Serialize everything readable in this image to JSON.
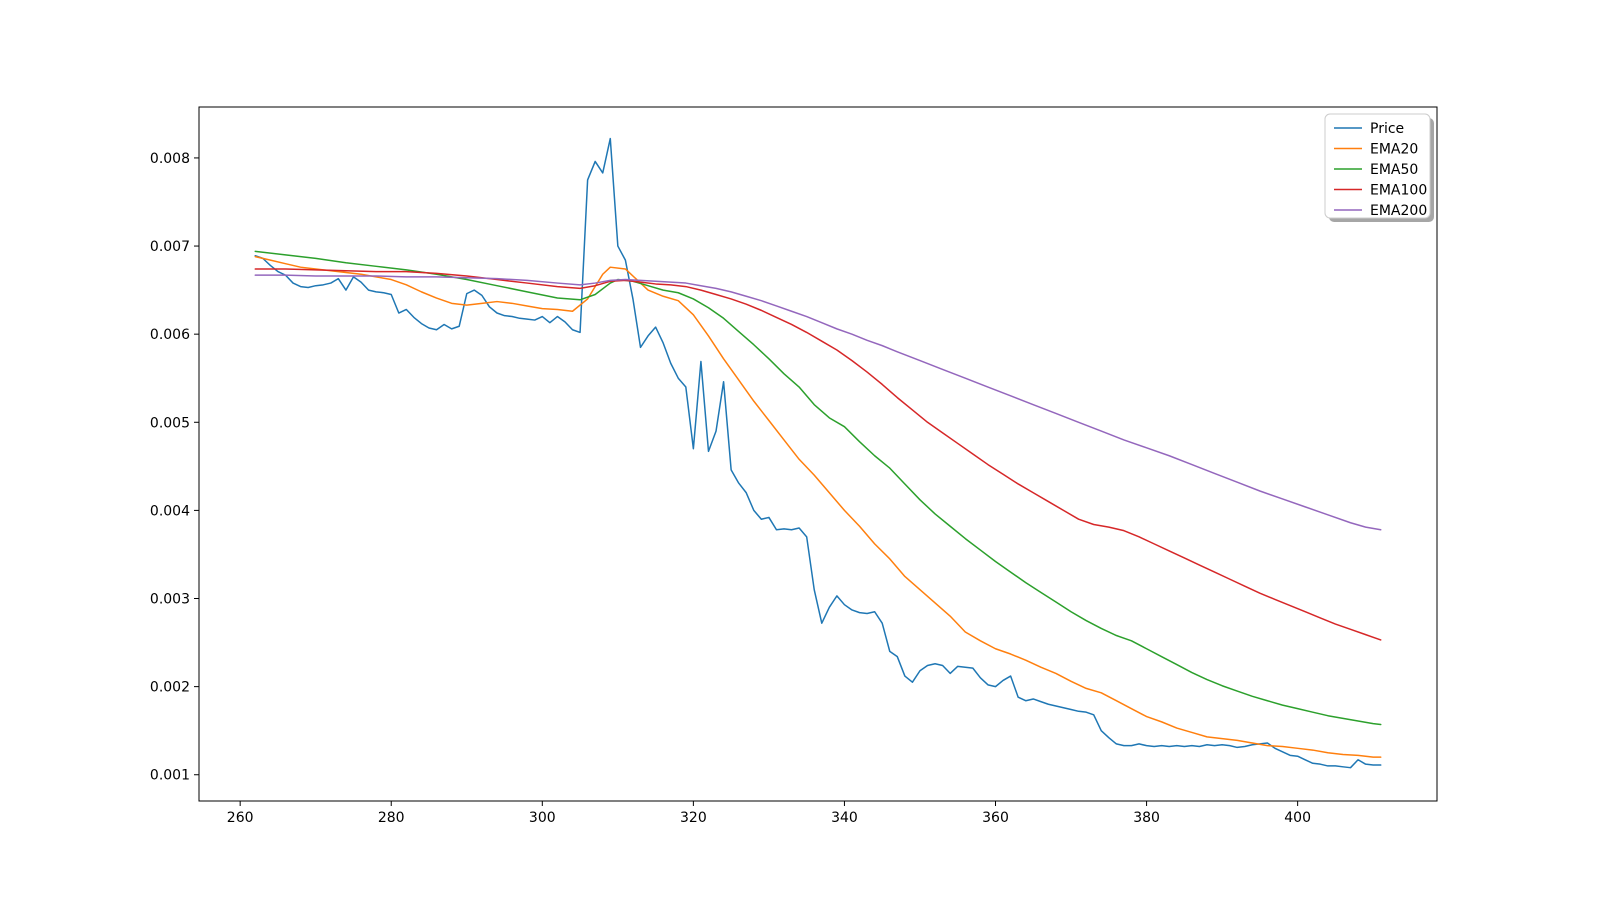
{
  "chart_data": {
    "type": "line",
    "title": "",
    "xlabel": "",
    "ylabel": "",
    "grid": false,
    "background": "#ffffff",
    "axis_color": "#000000",
    "xlim": [
      254.55,
      418.45
    ],
    "ylim": [
      0.000702,
      0.008578
    ],
    "xticks": [
      260,
      280,
      300,
      320,
      340,
      360,
      380,
      400
    ],
    "xtick_labels": [
      "260",
      "280",
      "300",
      "320",
      "340",
      "360",
      "380",
      "400"
    ],
    "yticks": [
      0.001,
      0.002,
      0.003,
      0.004,
      0.005,
      0.006,
      0.007,
      0.008
    ],
    "ytick_labels": [
      "0.001",
      "0.002",
      "0.003",
      "0.004",
      "0.005",
      "0.006",
      "0.007",
      "0.008"
    ],
    "legend": {
      "position": "upper right",
      "shadow": true,
      "border_color": "#cccccc",
      "entries": [
        "Price",
        "EMA20",
        "EMA50",
        "EMA100",
        "EMA200"
      ]
    },
    "series": [
      {
        "name": "Price",
        "color": "#1f77b4",
        "x_start": 262,
        "x_step": 1,
        "y": [
          0.00689,
          0.00686,
          0.00678,
          0.00671,
          0.00667,
          0.00658,
          0.00654,
          0.00653,
          0.00655,
          0.00656,
          0.00658,
          0.00663,
          0.0065,
          0.00665,
          0.00659,
          0.0065,
          0.00648,
          0.00647,
          0.00645,
          0.00624,
          0.00628,
          0.00619,
          0.00612,
          0.00607,
          0.00605,
          0.00611,
          0.00606,
          0.00609,
          0.00646,
          0.0065,
          0.00644,
          0.00631,
          0.00624,
          0.00621,
          0.0062,
          0.00618,
          0.00617,
          0.00616,
          0.0062,
          0.00613,
          0.0062,
          0.00614,
          0.00605,
          0.00602,
          0.00775,
          0.00796,
          0.00783,
          0.00822,
          0.007,
          0.00684,
          0.0064,
          0.00585,
          0.00598,
          0.00608,
          0.0059,
          0.00567,
          0.0055,
          0.0054,
          0.0047,
          0.00569,
          0.00467,
          0.0049,
          0.00546,
          0.00446,
          0.00431,
          0.0042,
          0.004,
          0.0039,
          0.00392,
          0.00378,
          0.00379,
          0.00378,
          0.0038,
          0.0037,
          0.0031,
          0.00272,
          0.0029,
          0.00303,
          0.00293,
          0.00287,
          0.00284,
          0.00283,
          0.00285,
          0.00272,
          0.0024,
          0.00234,
          0.00212,
          0.00205,
          0.00218,
          0.00224,
          0.00226,
          0.00224,
          0.00215,
          0.00223,
          0.00222,
          0.00221,
          0.0021,
          0.00202,
          0.002,
          0.00207,
          0.00212,
          0.00188,
          0.00184,
          0.00186,
          0.00183,
          0.0018,
          0.00178,
          0.00176,
          0.00174,
          0.00172,
          0.00171,
          0.00168,
          0.0015,
          0.00142,
          0.00135,
          0.00133,
          0.00133,
          0.00135,
          0.00133,
          0.00132,
          0.00133,
          0.00132,
          0.00133,
          0.00132,
          0.00133,
          0.00132,
          0.00134,
          0.00133,
          0.00134,
          0.00133,
          0.00131,
          0.00132,
          0.00134,
          0.00135,
          0.00136,
          0.0013,
          0.00126,
          0.00122,
          0.00121,
          0.00117,
          0.00113,
          0.00112,
          0.0011,
          0.0011,
          0.00109,
          0.00108,
          0.00117,
          0.00112,
          0.00111,
          0.00111
        ]
      },
      {
        "name": "EMA20",
        "color": "#ff7f0e",
        "x": [
          262,
          264,
          266,
          268,
          270,
          272,
          274,
          276,
          278,
          280,
          282,
          284,
          286,
          288,
          290,
          292,
          294,
          296,
          298,
          300,
          302,
          304,
          306,
          308,
          309,
          311,
          314,
          316,
          318,
          320,
          322,
          324,
          326,
          328,
          330,
          332,
          334,
          336,
          338,
          340,
          342,
          344,
          346,
          348,
          350,
          352,
          354,
          356,
          358,
          360,
          362,
          364,
          366,
          368,
          370,
          372,
          374,
          376,
          378,
          380,
          382,
          384,
          386,
          388,
          390,
          392,
          394,
          396,
          398,
          400,
          402,
          404,
          406,
          408,
          410,
          411
        ],
        "y": [
          0.00688,
          0.00684,
          0.0068,
          0.00676,
          0.00674,
          0.00672,
          0.0067,
          0.00668,
          0.00665,
          0.00662,
          0.00656,
          0.00648,
          0.00641,
          0.00635,
          0.00633,
          0.00635,
          0.00637,
          0.00635,
          0.00632,
          0.00629,
          0.00628,
          0.00626,
          0.0064,
          0.00668,
          0.00676,
          0.00674,
          0.0065,
          0.00643,
          0.00638,
          0.00622,
          0.00598,
          0.00572,
          0.00548,
          0.00524,
          0.00502,
          0.0048,
          0.00458,
          0.0044,
          0.0042,
          0.004,
          0.00382,
          0.00362,
          0.00345,
          0.00325,
          0.0031,
          0.00295,
          0.0028,
          0.00262,
          0.00252,
          0.00243,
          0.00237,
          0.0023,
          0.00222,
          0.00215,
          0.00206,
          0.00198,
          0.00193,
          0.00184,
          0.00175,
          0.00166,
          0.0016,
          0.00153,
          0.00148,
          0.00143,
          0.00141,
          0.00139,
          0.00136,
          0.00133,
          0.00132,
          0.0013,
          0.00128,
          0.00125,
          0.00123,
          0.00122,
          0.0012,
          0.0012
        ]
      },
      {
        "name": "EMA50",
        "color": "#2ca02c",
        "x": [
          262,
          266,
          270,
          274,
          278,
          282,
          286,
          290,
          294,
          298,
          302,
          305,
          307,
          309,
          310,
          312,
          314,
          316,
          318,
          320,
          322,
          324,
          326,
          328,
          330,
          332,
          334,
          336,
          338,
          340,
          342,
          344,
          346,
          348,
          350,
          352,
          354,
          356,
          358,
          360,
          362,
          364,
          366,
          368,
          370,
          372,
          374,
          376,
          378,
          380,
          382,
          384,
          386,
          388,
          390,
          392,
          394,
          396,
          398,
          400,
          402,
          404,
          406,
          408,
          410,
          411
        ],
        "y": [
          0.00694,
          0.0069,
          0.00686,
          0.00681,
          0.00677,
          0.00673,
          0.00668,
          0.00662,
          0.00655,
          0.00648,
          0.00641,
          0.00639,
          0.00645,
          0.00658,
          0.00662,
          0.0066,
          0.00655,
          0.0065,
          0.00647,
          0.0064,
          0.0063,
          0.00618,
          0.00603,
          0.00588,
          0.00572,
          0.00555,
          0.0054,
          0.0052,
          0.00505,
          0.00495,
          0.00478,
          0.00462,
          0.00448,
          0.0043,
          0.00412,
          0.00396,
          0.00382,
          0.00368,
          0.00355,
          0.00342,
          0.0033,
          0.00318,
          0.00307,
          0.00296,
          0.00285,
          0.00275,
          0.00266,
          0.00258,
          0.00252,
          0.00243,
          0.00234,
          0.00225,
          0.00216,
          0.00208,
          0.00201,
          0.00195,
          0.00189,
          0.00184,
          0.00179,
          0.00175,
          0.00171,
          0.00167,
          0.00164,
          0.00161,
          0.00158,
          0.00157
        ]
      },
      {
        "name": "EMA100",
        "color": "#d62728",
        "x": [
          262,
          266,
          270,
          274,
          278,
          282,
          286,
          290,
          294,
          298,
          302,
          305,
          307,
          309,
          311,
          313,
          315,
          317,
          319,
          321,
          323,
          325,
          327,
          329,
          331,
          333,
          335,
          337,
          339,
          341,
          343,
          345,
          347,
          349,
          351,
          353,
          355,
          357,
          359,
          361,
          363,
          365,
          367,
          369,
          371,
          373,
          375,
          377,
          379,
          381,
          383,
          385,
          387,
          389,
          391,
          393,
          395,
          397,
          399,
          401,
          403,
          405,
          407,
          409,
          411
        ],
        "y": [
          0.00674,
          0.00674,
          0.00673,
          0.00672,
          0.00671,
          0.00671,
          0.00669,
          0.00666,
          0.00662,
          0.00658,
          0.00654,
          0.00652,
          0.00655,
          0.0066,
          0.00661,
          0.00659,
          0.00657,
          0.00656,
          0.00654,
          0.0065,
          0.00645,
          0.0064,
          0.00634,
          0.00627,
          0.00619,
          0.00611,
          0.00602,
          0.00592,
          0.00582,
          0.0057,
          0.00557,
          0.00543,
          0.00528,
          0.00514,
          0.005,
          0.00488,
          0.00476,
          0.00464,
          0.00452,
          0.00441,
          0.0043,
          0.0042,
          0.0041,
          0.004,
          0.0039,
          0.00384,
          0.00381,
          0.00377,
          0.0037,
          0.00362,
          0.00354,
          0.00346,
          0.00338,
          0.0033,
          0.00322,
          0.00314,
          0.00306,
          0.00299,
          0.00292,
          0.00285,
          0.00278,
          0.00271,
          0.00265,
          0.00259,
          0.00253
        ]
      },
      {
        "name": "EMA200",
        "color": "#9467bd",
        "x": [
          262,
          266,
          270,
          274,
          278,
          282,
          286,
          290,
          294,
          298,
          302,
          305,
          307,
          309,
          311,
          313,
          315,
          317,
          319,
          321,
          323,
          325,
          327,
          329,
          331,
          333,
          335,
          337,
          339,
          341,
          343,
          345,
          347,
          350,
          353,
          356,
          359,
          362,
          365,
          368,
          371,
          374,
          377,
          380,
          383,
          386,
          389,
          392,
          395,
          398,
          401,
          404,
          407,
          409,
          411
        ],
        "y": [
          0.00667,
          0.00667,
          0.00666,
          0.00666,
          0.00666,
          0.00665,
          0.00665,
          0.00664,
          0.00663,
          0.00661,
          0.00658,
          0.00656,
          0.00658,
          0.00661,
          0.00662,
          0.00661,
          0.0066,
          0.00659,
          0.00658,
          0.00655,
          0.00652,
          0.00648,
          0.00643,
          0.00638,
          0.00632,
          0.00626,
          0.0062,
          0.00613,
          0.00606,
          0.006,
          0.00593,
          0.00587,
          0.0058,
          0.0057,
          0.0056,
          0.0055,
          0.0054,
          0.0053,
          0.0052,
          0.0051,
          0.005,
          0.0049,
          0.0048,
          0.00471,
          0.00462,
          0.00452,
          0.00442,
          0.00432,
          0.00422,
          0.00413,
          0.00404,
          0.00395,
          0.00386,
          0.00381,
          0.00378
        ]
      }
    ]
  }
}
